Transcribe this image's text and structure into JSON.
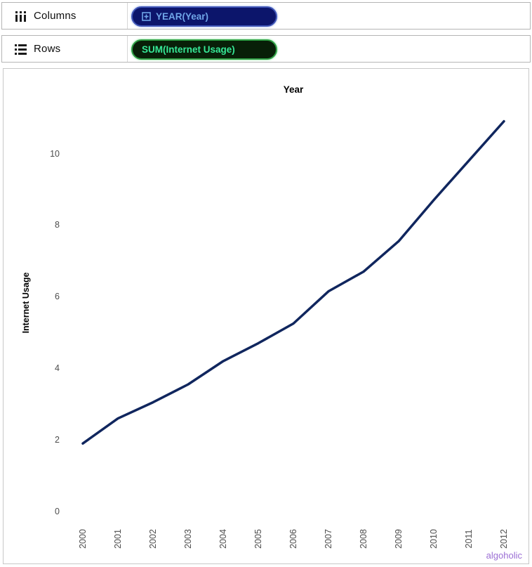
{
  "shelves": {
    "columns": {
      "label": "Columns",
      "pill": "YEAR(Year)"
    },
    "rows": {
      "label": "Rows",
      "pill": "SUM(Internet Usage)"
    }
  },
  "colors": {
    "columns_pill_bg": "#0c156b",
    "columns_pill_text": "#6fa6e8",
    "columns_pill_border": "#4056b8",
    "rows_pill_bg": "#081f08",
    "rows_pill_text": "#36e897",
    "rows_pill_border": "#2f9e44",
    "line": "#10265e",
    "tick_text": "#4d4d4d",
    "title_text": "#000000",
    "watermark_text": "#9b6ed4",
    "panel_border": "#c8c8c8"
  },
  "chart_data": {
    "type": "line",
    "title": "Year",
    "xlabel": "Year",
    "ylabel": "Internet Usage",
    "categories": [
      "2000",
      "2001",
      "2002",
      "2003",
      "2004",
      "2005",
      "2006",
      "2007",
      "2008",
      "2009",
      "2010",
      "2011",
      "2012"
    ],
    "values": [
      1.9,
      2.6,
      3.05,
      3.55,
      4.2,
      4.7,
      5.25,
      6.15,
      6.7,
      7.55,
      8.7,
      9.8,
      10.9
    ],
    "yticks": [
      0,
      2,
      4,
      6,
      8,
      10
    ],
    "ylim": [
      0,
      12
    ],
    "grid": false,
    "legend": "none",
    "line_color": "#10265e"
  },
  "watermark": "algoholic"
}
